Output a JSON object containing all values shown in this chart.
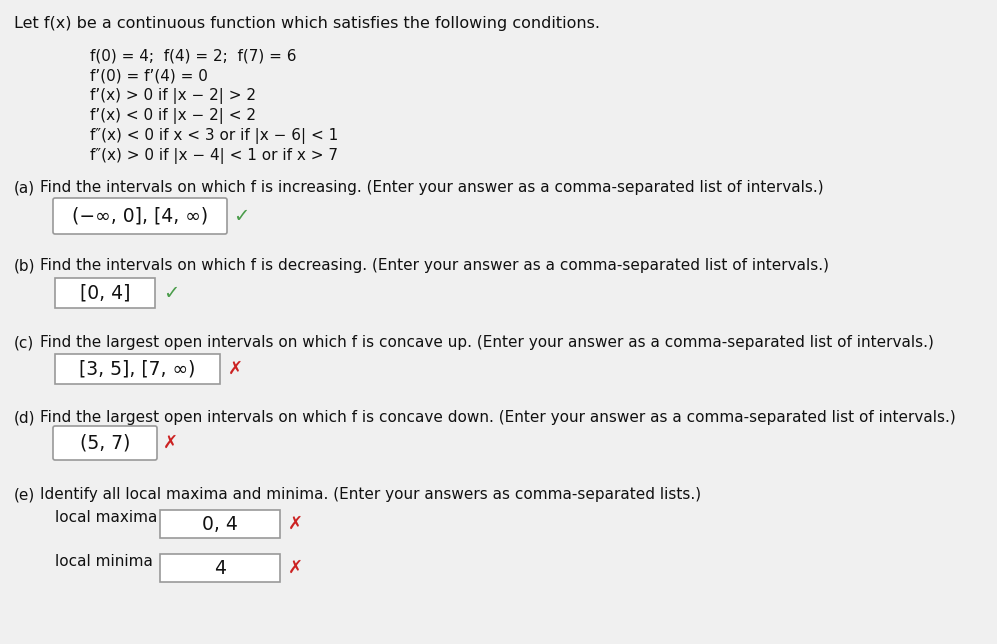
{
  "bg_color": "#f0f0f0",
  "title_text": "Let f(x) be a continuous function which satisfies the following conditions.",
  "conditions": [
    "f(0) = 4;  f(4) = 2;  f(7) = 6",
    "f’(0) = f’(4) = 0",
    "f’(x) > 0 if |x − 2| > 2",
    "f’(x) < 0 if |x − 2| < 2",
    "f″(x) < 0 if x < 3 or if |x − 6| < 1",
    "f″(x) > 0 if |x − 4| < 1 or if x > 7"
  ],
  "parts": [
    {
      "label": "(a)",
      "question": "Find the intervals on which f is increasing. (Enter your answer as a comma-separated list of intervals.)",
      "answer": "(−∞, 0], [4, ∞)",
      "correct": true,
      "rounded": true
    },
    {
      "label": "(b)",
      "question": "Find the intervals on which f is decreasing. (Enter your answer as a comma-separated list of intervals.)",
      "answer": "[0, 4]",
      "correct": true,
      "rounded": false
    },
    {
      "label": "(c)",
      "question": "Find the largest open intervals on which f is concave up. (Enter your answer as a comma-separated list of intervals.)",
      "answer": "[3, 5], [7, ∞)",
      "correct": false,
      "rounded": false
    },
    {
      "label": "(d)",
      "question": "Find the largest open intervals on which f is concave down. (Enter your answer as a comma-separated list of intervals.)",
      "answer": "(5, 7)",
      "correct": false,
      "rounded": true
    }
  ],
  "part_e_question": "Identify all local maxima and minima. (Enter your answers as comma-separated lists.)",
  "sub_parts": [
    {
      "label": "local maxima",
      "answer": "0, 4",
      "correct": false
    },
    {
      "label": "local minima",
      "answer": "4",
      "correct": false
    }
  ],
  "check_color": "#4a9c4a",
  "x_color": "#cc2222",
  "text_color": "#111111",
  "box_color": "#ffffff",
  "box_border": "#999999",
  "title_fontsize": 11.5,
  "cond_fontsize": 11,
  "question_fontsize": 11,
  "answer_fontsize": 13.5,
  "label_fontsize": 11,
  "mark_fontsize": 14
}
